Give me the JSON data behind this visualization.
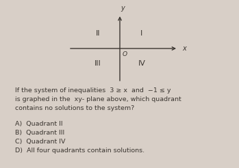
{
  "bg_color": "#d8cfc7",
  "axes_color": "#3a3530",
  "text_color": "#3a3530",
  "quadrant_labels": [
    "II",
    "I",
    "III",
    "IV"
  ],
  "axis_label_x": "x",
  "axis_label_y": "y",
  "origin_label": "O",
  "question_line1": "If the system of inequalities  3 ≥ x  and  −1 ≤ y",
  "question_line2": "is graphed in the  xy- plane above, which quadrant",
  "question_line3": "contains no solutions to the system?",
  "answer_a": "A)  Quadrant II",
  "answer_b": "B)  Quadrant III",
  "answer_c": "C)  Quadrant IV",
  "answer_d": "D)  All four quadrants contain solutions."
}
